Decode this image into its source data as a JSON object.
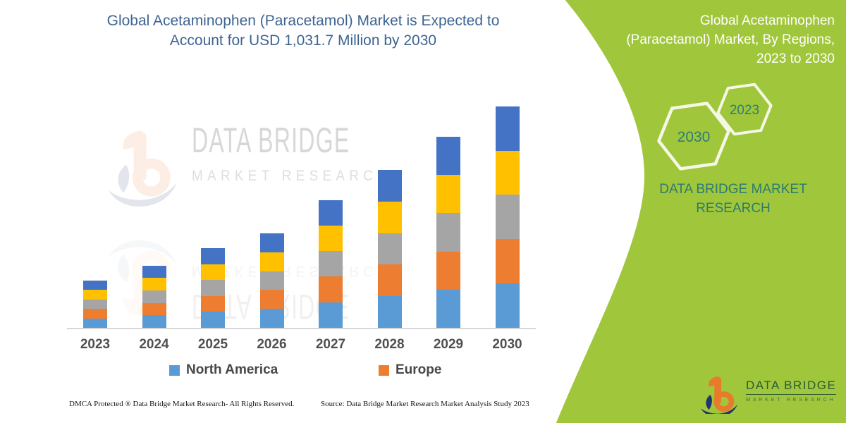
{
  "header": {
    "title_line1": "Global Acetaminophen (Paracetamol) Market is Expected to",
    "title_line2": "Account for USD 1,031.7 Million by 2030"
  },
  "side_panel": {
    "panel_color": "#a0c63c",
    "heading_line1": "Global Acetaminophen",
    "heading_line2": "(Paracetamol) Market, By Regions,",
    "heading_line3": "2023 to 2030",
    "hexagons": [
      {
        "label": "2030"
      },
      {
        "label": "2023"
      }
    ],
    "caption_line1": "DATA BRIDGE MARKET",
    "caption_line2": "RESEARCH",
    "text_color": "#2c7b70"
  },
  "chart_data": {
    "type": "bar",
    "stacked": true,
    "title": "Global Acetaminophen (Paracetamol) Market is Expected to Account for USD 1,031.7 Million by 2030",
    "unit": "USD Million",
    "x": [
      "2023",
      "2024",
      "2025",
      "2026",
      "2027",
      "2028",
      "2029",
      "2030"
    ],
    "ylim": [
      0,
      1050
    ],
    "y_axis_visible": false,
    "gridlines": false,
    "legend_position": "bottom",
    "values_estimated_from_pixels": true,
    "stated_value": "USD 1,031.7 Million by 2030",
    "totals_estimated": [
      220,
      290,
      370,
      440,
      595,
      735,
      890,
      1031.7
    ],
    "series": [
      {
        "name": "North America",
        "color": "#5B9BD5",
        "values": [
          44,
          58,
          74,
          88,
          119,
          147,
          178,
          206.3
        ]
      },
      {
        "name": "Europe",
        "color": "#ED7D31",
        "values": [
          44,
          58,
          74,
          88,
          119,
          147,
          178,
          206.3
        ]
      },
      {
        "name": "(unlabeled gray)",
        "color": "#A5A5A5",
        "values": [
          44,
          58,
          74,
          88,
          119,
          147,
          178,
          206.3
        ]
      },
      {
        "name": "(unlabeled yellow)",
        "color": "#FFC000",
        "values": [
          44,
          58,
          74,
          88,
          119,
          147,
          178,
          206.3
        ]
      },
      {
        "name": "(unlabeled dark blue)",
        "color": "#4472C4",
        "values": [
          44,
          58,
          74,
          88,
          119,
          147,
          178,
          206.3
        ]
      }
    ]
  },
  "legend": [
    {
      "label": "North America",
      "color": "#5B9BD5"
    },
    {
      "label": "Europe",
      "color": "#ED7D31"
    }
  ],
  "watermark": {
    "line1": "DATA BRIDGE",
    "line2": "MARKET RESEARCH"
  },
  "footer": {
    "dmca": "DMCA Protected ® Data Bridge Market Research- All Rights Reserved.",
    "source": "Source: Data Bridge Market Research Market Analysis Study 2023"
  },
  "logo": {
    "line1": "DATA BRIDGE",
    "line2": "MARKET RESEARCH"
  }
}
